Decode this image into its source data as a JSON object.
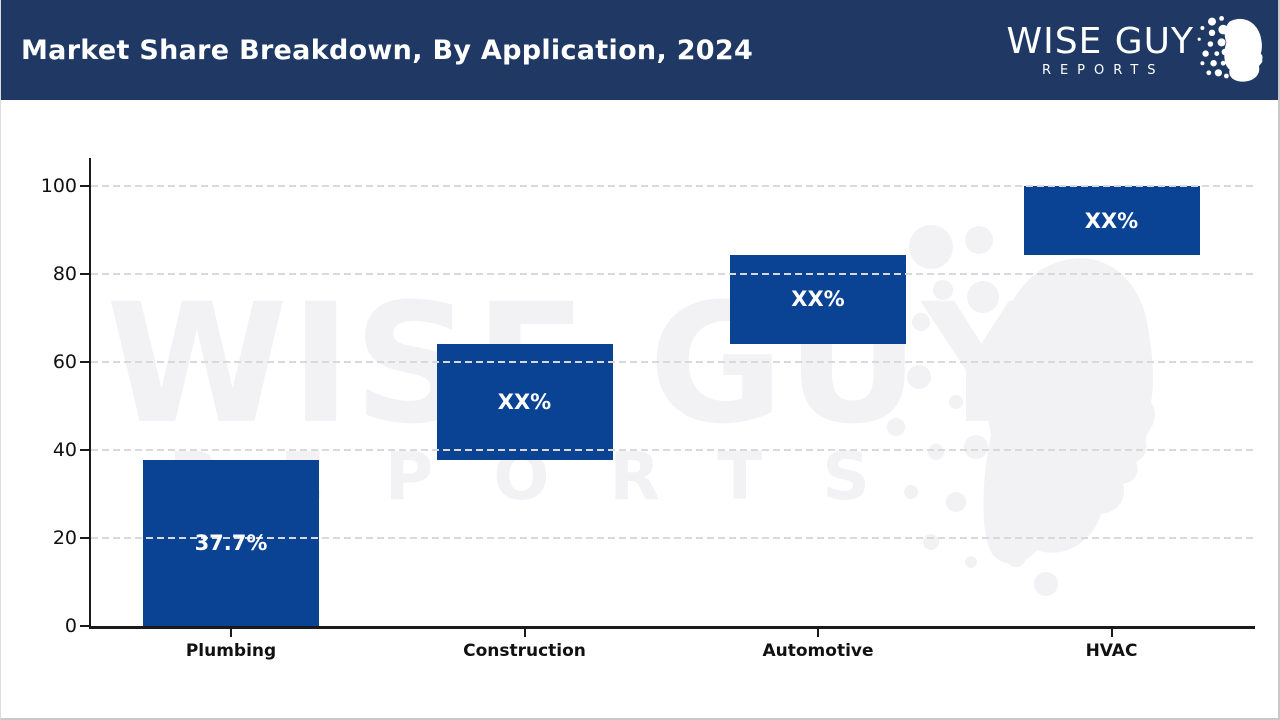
{
  "header": {
    "title": "Market Share Breakdown, By Application, 2024",
    "bg_color": "#1f3864",
    "logo": {
      "line1": "WISE GUY",
      "line2": "REPORTS"
    }
  },
  "watermark": {
    "line1": "WISE GUY",
    "line2": "REPORTS"
  },
  "chart_data": {
    "type": "bar",
    "subtype": "waterfall",
    "title": "Market Share Breakdown, By Application, 2024",
    "categories": [
      "Plumbing",
      "Construction",
      "Automotive",
      "HVAC"
    ],
    "series": [
      {
        "name": "Market Share",
        "segments": [
          {
            "start": 0,
            "end": 37.7,
            "label": "37.7%"
          },
          {
            "start": 37.7,
            "end": 64.2,
            "label": "XX%"
          },
          {
            "start": 64.2,
            "end": 84.3,
            "label": "XX%"
          },
          {
            "start": 84.3,
            "end": 100,
            "label": "XX%"
          }
        ]
      }
    ],
    "ylim": [
      0,
      100
    ],
    "yticks": [
      0,
      20,
      40,
      60,
      80,
      100
    ],
    "grid": "horizontal-dashed",
    "legend": "none",
    "bar_color": "#0a4394",
    "bar_label_color": "#ffffff",
    "axis_color": "#1a1a1a",
    "grid_color": "#d9d9d9",
    "watermark_color": "#f2f2f4"
  }
}
